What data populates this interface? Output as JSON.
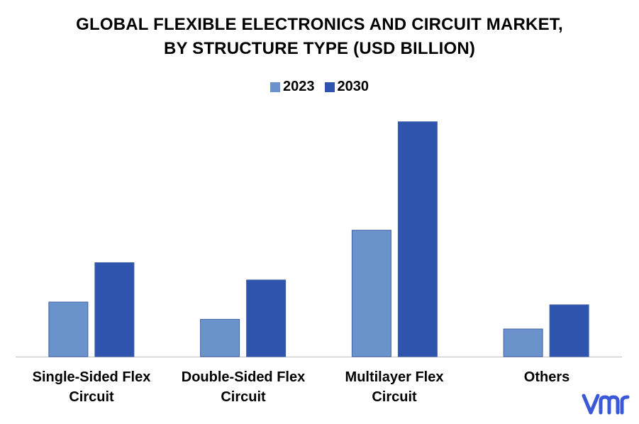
{
  "chart_data": {
    "type": "bar",
    "title_lines": [
      "GLOBAL FLEXIBLE ELECTRONICS AND CIRCUIT MARKET,",
      "BY STRUCTURE TYPE (USD BILLION)"
    ],
    "categories": [
      "Single-Sided Flex Circuit",
      "Double-Sided Flex Circuit",
      "Multilayer Flex Circuit",
      "Others"
    ],
    "category_label_lines": [
      [
        "Single-Sided Flex",
        "Circuit"
      ],
      [
        "Double-Sided Flex",
        "Circuit"
      ],
      [
        "Multilayer Flex Circuit"
      ],
      [
        "Others"
      ]
    ],
    "series": [
      {
        "name": "2023",
        "color": "#6A93CB",
        "values": [
          7.9,
          5.4,
          18.3,
          4.0
        ]
      },
      {
        "name": "2030",
        "color": "#2F54AD",
        "values": [
          13.6,
          11.1,
          34.0,
          7.5
        ]
      }
    ],
    "ylim": [
      0,
      35
    ],
    "grid": false,
    "legend_position": "top-center",
    "y_axis_visible": false
  },
  "logo": {
    "name": "vmr-logo",
    "color": "#3B59D6"
  }
}
